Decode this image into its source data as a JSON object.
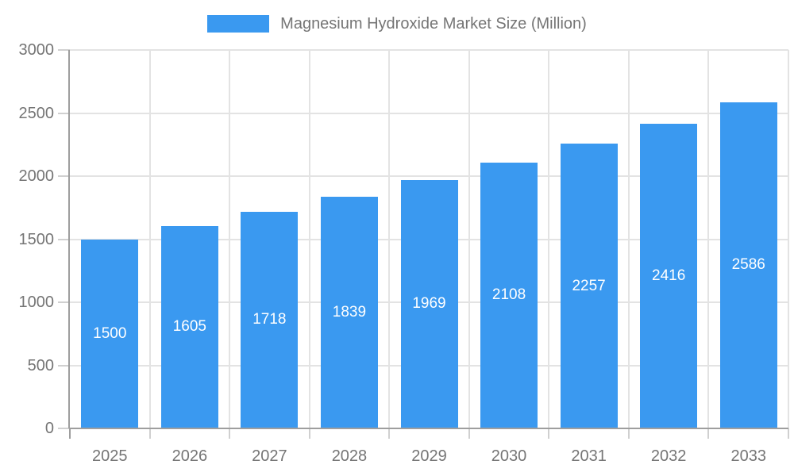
{
  "chart_data": {
    "type": "bar",
    "title": "Magnesium Hydroxide Market Size (Million)",
    "categories": [
      "2025",
      "2026",
      "2027",
      "2028",
      "2029",
      "2030",
      "2031",
      "2032",
      "2033"
    ],
    "values": [
      1500,
      1605,
      1718,
      1839,
      1969,
      2108,
      2257,
      2416,
      2586
    ],
    "xlabel": "",
    "ylabel": "",
    "ylim": [
      0,
      3000
    ],
    "yticks": [
      0,
      500,
      1000,
      1500,
      2000,
      2500,
      3000
    ],
    "grid": true,
    "legend_position": "top-center",
    "legend_entries": [
      "Magnesium Hydroxide Market Size (Million)"
    ],
    "value_labels_inside_bars": true
  },
  "colors": {
    "bar": "#3a99f0",
    "bar_value_text": "#ffffff",
    "gridline": "#e3e3e3",
    "tick_mark": "#d0d0d0",
    "axis_line": "#9e9e9e",
    "axis_text": "#757575",
    "legend_text": "#757575",
    "background": "#ffffff"
  }
}
